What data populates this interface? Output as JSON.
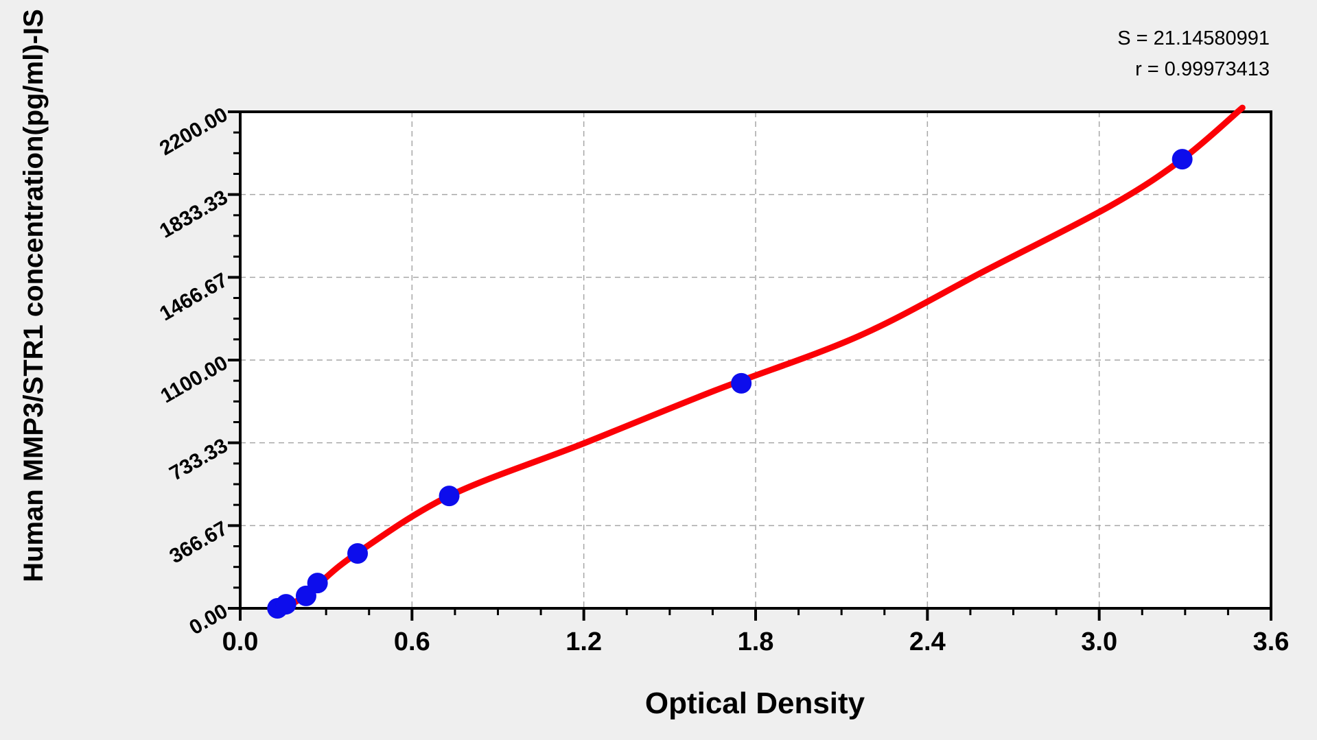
{
  "chart_data": {
    "type": "scatter",
    "title": "",
    "xlabel": "Optical Density",
    "ylabel": "Human MMP3/STR1 concentration(pg/ml)-IS",
    "xlim": [
      0,
      3.6
    ],
    "ylim": [
      0,
      2200
    ],
    "x_tick_labels": [
      "0.0",
      "0.6",
      "1.2",
      "1.8",
      "2.4",
      "3.0",
      "3.6"
    ],
    "x_tick_values": [
      0,
      0.6,
      1.2,
      1.8,
      2.4,
      3.0,
      3.6
    ],
    "y_tick_labels": [
      "0.00",
      "366.67",
      "733.33",
      "1100.00",
      "1466.67",
      "1833.33",
      "2200.00"
    ],
    "y_tick_values": [
      0,
      366.67,
      733.33,
      1100,
      1466.67,
      1833.33,
      2200
    ],
    "minor_ticks_per_interval": 3,
    "grid": "dashed-on-major-ticks",
    "legend": "none",
    "s_label": "S = 21.14580991",
    "r_label": "r = 0.99973413",
    "series": [
      {
        "name": "standard-points",
        "type": "scatter",
        "color": "#0d0dec",
        "x": [
          0.13,
          0.16,
          0.23,
          0.27,
          0.41,
          0.73,
          1.75,
          3.29
        ],
        "y": [
          0,
          18,
          55,
          112,
          243,
          498,
          997,
          1990
        ]
      },
      {
        "name": "regression-curve",
        "type": "line",
        "color": "#fb0006",
        "x": [
          0.14,
          0.23,
          0.28,
          0.41,
          0.73,
          1.19,
          1.66,
          2.16,
          2.6,
          3.04,
          3.29,
          3.5
        ],
        "y": [
          -10,
          58,
          115,
          246,
          498,
          726,
          966,
          1206,
          1495,
          1784,
          1990,
          2218
        ]
      }
    ]
  },
  "colors": {
    "background": "#efefef",
    "plot_background": "#ffffff",
    "axis": "#000000",
    "grid": "#a6a6a6",
    "point": "#0d0dec",
    "curve": "#fb0006",
    "text": "#000000"
  }
}
